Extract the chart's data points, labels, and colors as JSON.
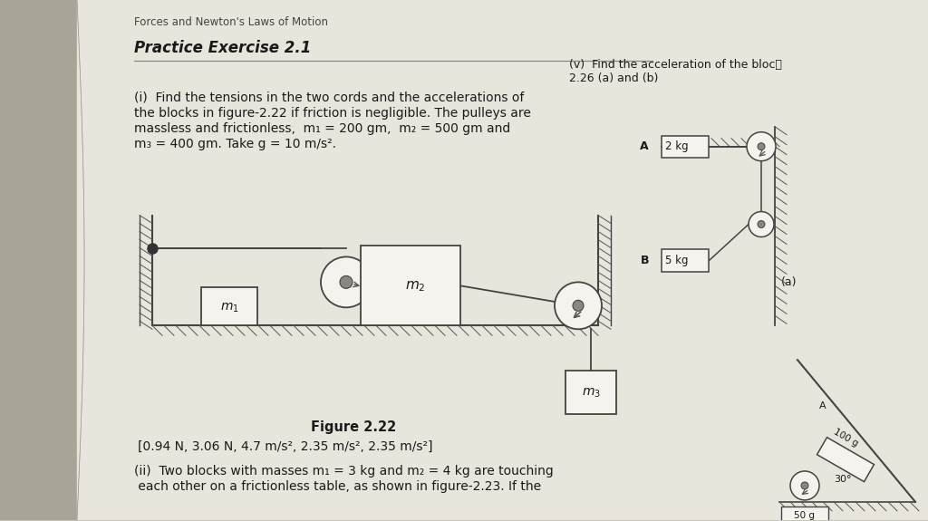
{
  "bg_color": "#c8c4b8",
  "page_color": "#e8e5dc",
  "left_shadow_color": "#a8a498",
  "header_text": "Forces and Newton's Laws of Motion",
  "title_text": "Practice Exercise 2.1",
  "body_lines": [
    "(i)  Find the tensions in the two cords and the accelerations of",
    "the blocks in figure-2.22 if friction is negligible. The pulleys are",
    "massless and frictionless,  m₁ = 200 gm,  m₂ = 500 gm and",
    "m₃ = 400 gm. Take g = 10 m/s²."
  ],
  "figure_caption": "Figure 2.22",
  "answer_text": "[0.94 N, 3.06 N, 4.7 m/s², 2.35 m/s², 2.35 m/s²]",
  "part_ii_line1": "(ii)  Two blocks with masses m₁ = 3 kg and m₂ = 4 kg are touching",
  "part_ii_line2": " each other on a frictionless table, as shown in figure-2.23. If the",
  "right_v_text": "(v)  Find the acceleration of the bloc⮌",
  "right_v_text2": "2.26 (a) and (b)",
  "line_color": "#444444",
  "hatch_color": "#555555",
  "text_color": "#1a1a1a",
  "box_face": "#f5f3ee",
  "wall_face": "#e0ddd4"
}
